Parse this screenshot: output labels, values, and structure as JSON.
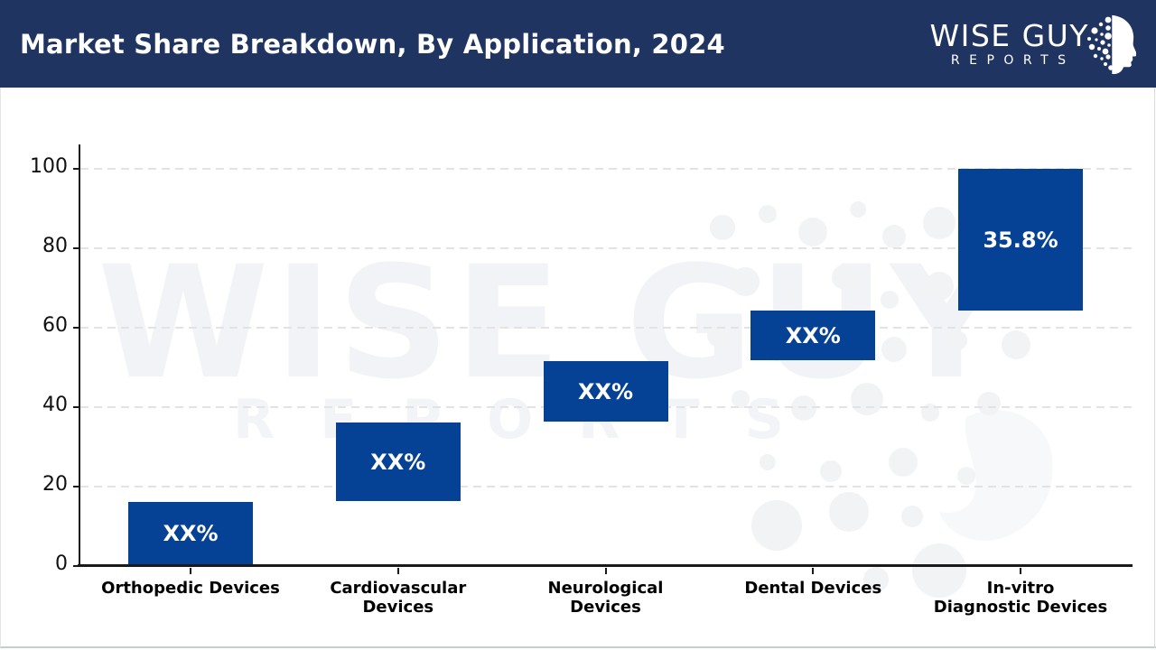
{
  "header": {
    "title": "Market Share Breakdown, By Application, 2024",
    "logo": {
      "line1": "WISE GUY",
      "line2": "REPORTS"
    }
  },
  "watermark": {
    "line1": "WISE GUY",
    "line2": "REPORTS"
  },
  "colors": {
    "header_bg": "#1f3460",
    "bar": "#054295",
    "grid": "#e3e3e6",
    "axis": "#1a1a1a",
    "bar_label_text": "#ffffff",
    "tick_text": "#111111",
    "watermark": "#f2f3f6"
  },
  "chart_data": {
    "type": "bar",
    "subtype": "floating-waterfall",
    "title": "Market Share Breakdown, By Application, 2024",
    "xlabel": "",
    "ylabel": "",
    "ylim": [
      0,
      106
    ],
    "yticks": [
      0,
      20,
      40,
      60,
      80,
      100
    ],
    "grid": "dashed-horizontal",
    "legend": "none",
    "categories": [
      "Orthopedic Devices",
      "Cardiovascular\nDevices",
      "Neurological\nDevices",
      "Dental Devices",
      "In-vitro\nDiagnostic Devices"
    ],
    "segments": [
      {
        "category": "Orthopedic Devices",
        "start": 0,
        "end": 16,
        "size_est": 16.0,
        "label": "XX%"
      },
      {
        "category": "Cardiovascular\nDevices",
        "start": 16.2,
        "end": 36,
        "size_est": 19.8,
        "label": "XX%"
      },
      {
        "category": "Neurological\nDevices",
        "start": 36.2,
        "end": 51.5,
        "size_est": 15.3,
        "label": "XX%"
      },
      {
        "category": "Dental Devices",
        "start": 51.7,
        "end": 64.2,
        "size_est": 12.5,
        "label": "XX%"
      },
      {
        "category": "In-vitro\nDiagnostic Devices",
        "start": 64.2,
        "end": 100,
        "size_est": 35.8,
        "label": "35.8%"
      }
    ]
  }
}
